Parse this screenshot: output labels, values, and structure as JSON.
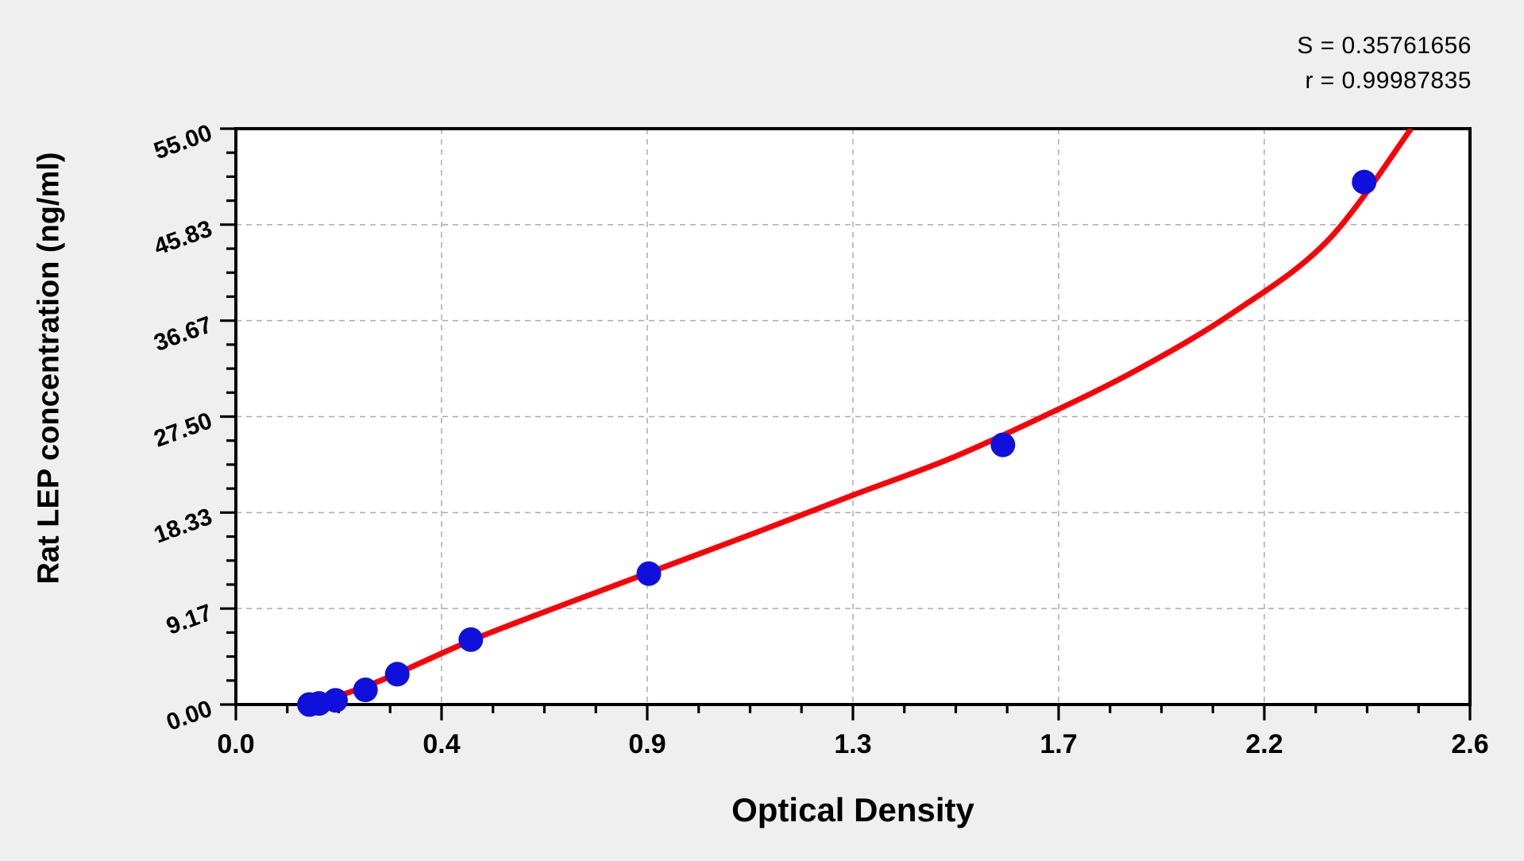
{
  "figure": {
    "y_title": "Rat LEP concentration (ng/ml)",
    "x_title": "Optical Density",
    "stats": {
      "s_line": "S = 0.35761656",
      "r_line": "r = 0.99987835"
    },
    "background_color": "#efefef",
    "plot_background_color": "#ffffff"
  },
  "chart_data": {
    "type": "scatter",
    "title": "",
    "xlabel": "Optical Density",
    "ylabel": "Rat LEP concentration (ng/ml)",
    "xlim": [
      0,
      2.6
    ],
    "ylim": [
      0,
      55
    ],
    "x_tick_labels": [
      "0.0",
      "0.4",
      "0.9",
      "1.3",
      "1.7",
      "2.2",
      "2.6"
    ],
    "y_tick_labels": [
      "0.00",
      "9.17",
      "18.33",
      "27.50",
      "36.67",
      "45.83",
      "55.00"
    ],
    "minor_intervals_per_major": 4,
    "grid": "dashed",
    "legend_position": "none",
    "stats": {
      "S": 0.35761656,
      "r": 0.99987835
    },
    "series": [
      {
        "name": "standards",
        "style": "points",
        "points_od_conc": [
          [
            0.155,
            0.0
          ],
          [
            0.175,
            0.1
          ],
          [
            0.21,
            0.4
          ],
          [
            0.273,
            1.4
          ],
          [
            0.34,
            2.9
          ],
          [
            0.495,
            6.2
          ],
          [
            0.87,
            12.5
          ],
          [
            1.616,
            24.8
          ],
          [
            2.377,
            49.9
          ]
        ]
      },
      {
        "name": "fit-curve",
        "style": "line",
        "points_od_conc": [
          [
            0.168,
            0.1
          ],
          [
            0.3,
            2.2
          ],
          [
            0.5,
            6.2
          ],
          [
            0.7,
            9.7
          ],
          [
            0.9,
            13.1
          ],
          [
            1.1,
            16.5
          ],
          [
            1.3,
            20.0
          ],
          [
            1.5,
            23.4
          ],
          [
            1.7,
            27.5
          ],
          [
            1.9,
            32.0
          ],
          [
            2.1,
            37.4
          ],
          [
            2.3,
            44.3
          ],
          [
            2.476,
            55.0
          ]
        ]
      }
    ],
    "colors": {
      "point": "#1010dd",
      "curve": "#fb0007",
      "grid": "#ababab",
      "axis": "#000000"
    }
  }
}
